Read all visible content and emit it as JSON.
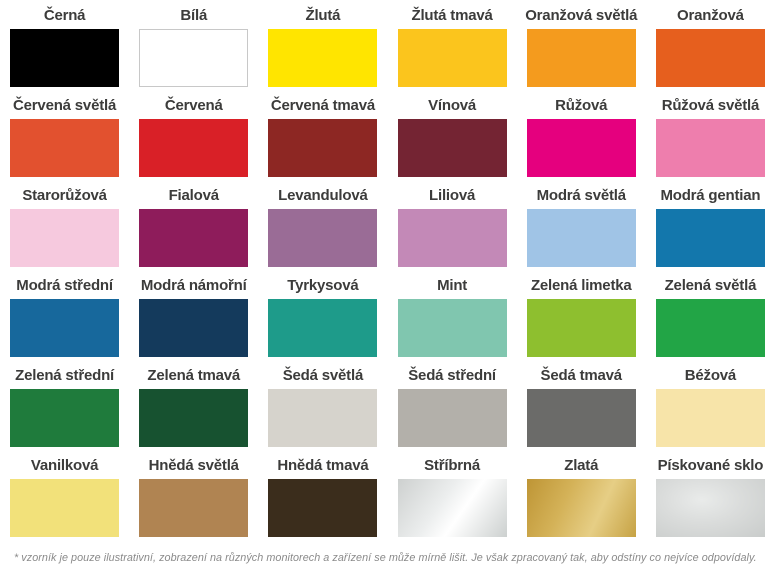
{
  "palette": {
    "swatches": [
      {
        "label": "Černá",
        "color": "#000000"
      },
      {
        "label": "Bílá",
        "color": "#ffffff",
        "border": "#c8c8c8"
      },
      {
        "label": "Žlutá",
        "color": "#ffe500"
      },
      {
        "label": "Žlutá tmavá",
        "color": "#fbc51d"
      },
      {
        "label": "Oranžová světlá",
        "color": "#f49b1e"
      },
      {
        "label": "Oranžová",
        "color": "#e65f1e"
      },
      {
        "label": "Červená světlá",
        "color": "#e2512f"
      },
      {
        "label": "Červená",
        "color": "#d92027"
      },
      {
        "label": "Červená tmavá",
        "color": "#8d2723"
      },
      {
        "label": "Vínová",
        "color": "#742433"
      },
      {
        "label": "Růžová",
        "color": "#e5007e"
      },
      {
        "label": "Růžová světlá",
        "color": "#ee7ead"
      },
      {
        "label": "Starorůžová",
        "color": "#f6c9de"
      },
      {
        "label": "Fialová",
        "color": "#8e1c5b"
      },
      {
        "label": "Levandulová",
        "color": "#9a6c96"
      },
      {
        "label": "Liliová",
        "color": "#c389b7"
      },
      {
        "label": "Modrá světlá",
        "color": "#a0c4e6"
      },
      {
        "label": "Modrá gentian",
        "color": "#1377ac"
      },
      {
        "label": "Modrá střední",
        "color": "#17689c"
      },
      {
        "label": "Modrá námořní",
        "color": "#143a5c"
      },
      {
        "label": "Tyrkysová",
        "color": "#1e9b8a"
      },
      {
        "label": "Mint",
        "color": "#80c6af"
      },
      {
        "label": "Zelená limetka",
        "color": "#8ebf2f"
      },
      {
        "label": "Zelená světlá",
        "color": "#22a546"
      },
      {
        "label": "Zelená střední",
        "color": "#1f7b3c"
      },
      {
        "label": "Zelená tmavá",
        "color": "#175230"
      },
      {
        "label": "Šedá světlá",
        "color": "#d6d3cc"
      },
      {
        "label": "Šedá střední",
        "color": "#b3b0aa"
      },
      {
        "label": "Šedá tmavá",
        "color": "#6b6b69"
      },
      {
        "label": "Béžová",
        "color": "#f7e4a9"
      },
      {
        "label": "Vanilková",
        "color": "#f2e17a"
      },
      {
        "label": "Hnědá světlá",
        "color": "#b08452"
      },
      {
        "label": "Hnědá tmavá",
        "color": "#3b2d1c"
      },
      {
        "label": "Stříbrná",
        "gradient": "linear",
        "angle": "125deg",
        "colors": [
          "#cdd0cf 0%",
          "#eceeee 40%",
          "#ffffff 58%",
          "#ccd0cf 100%"
        ]
      },
      {
        "label": "Zlatá",
        "gradient": "linear",
        "angle": "115deg",
        "colors": [
          "#be9535 0%",
          "#d4b258 35%",
          "#e6ce85 65%",
          "#c6a244 100%"
        ]
      },
      {
        "label": "Pískované sklo",
        "gradient": "radial",
        "colors": [
          "#e9ebea 0%",
          "#dadcdb 45%",
          "#c9cccb 100%"
        ]
      }
    ]
  },
  "footnote": "* vzorník je pouze ilustrativní, zobrazení na různých monitorech a zařízení se může mírně lišit. Je však zpracovaný tak, aby odstíny co nejvíce odpovídaly."
}
